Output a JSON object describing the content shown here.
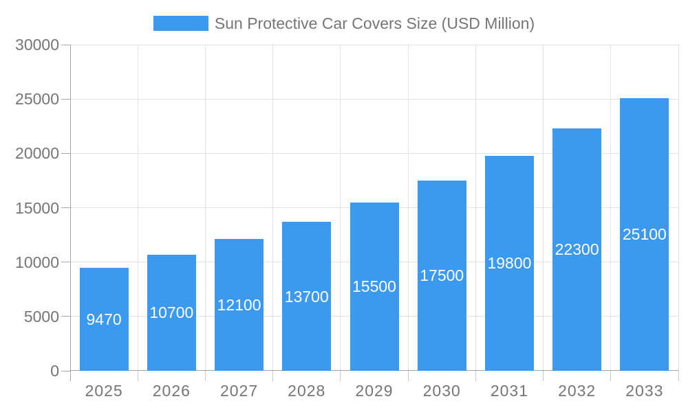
{
  "chart_data": {
    "type": "bar",
    "title": "Sun Protective Car Covers Size (USD Million)",
    "categories": [
      "2025",
      "2026",
      "2027",
      "2028",
      "2029",
      "2030",
      "2031",
      "2032",
      "2033"
    ],
    "values": [
      9470,
      10700,
      12100,
      13700,
      15500,
      17500,
      19800,
      22300,
      25100
    ],
    "series": [
      {
        "name": "Sun Protective Car Covers Size (USD Million)",
        "values": [
          9470,
          10700,
          12100,
          13700,
          15500,
          17500,
          19800,
          22300,
          25100
        ]
      }
    ],
    "xlabel": "",
    "ylabel": "",
    "ylim": [
      0,
      30000
    ],
    "y_ticks": [
      0,
      5000,
      10000,
      15000,
      20000,
      25000,
      30000
    ],
    "grid": true,
    "legend_position": "top-center",
    "value_label_position": "inside-center"
  },
  "legend": {
    "label": "Sun Protective Car Covers Size (USD Million)",
    "swatch": "blue-rect"
  },
  "colors": {
    "bar": "#3B99F0",
    "legend_text": "#757575",
    "tick_text": "#757575",
    "value_label_text": "#ffffff",
    "axis_line": "#a2a2a2",
    "grid_line": "#e2e2e2",
    "tick_mark": "#c9c9c9",
    "background": "#ffffff"
  }
}
